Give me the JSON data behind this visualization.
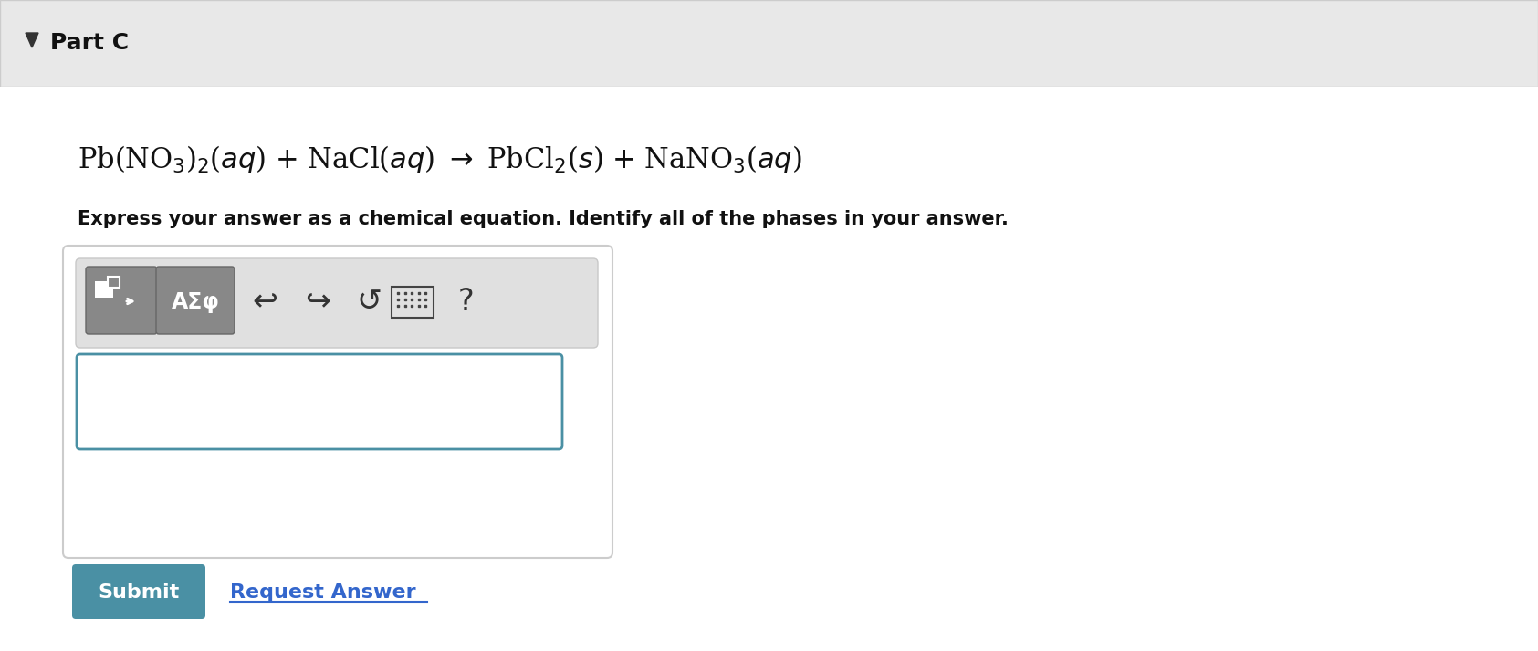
{
  "bg_color": "#f0f0f0",
  "white_bg": "#ffffff",
  "header_bg": "#e8e8e8",
  "part_label": "Part C",
  "instruction": "Express your answer as a chemical equation. Identify all of the phases in your answer.",
  "toolbar_btn2_text": "AΣφ",
  "submit_bg": "#4a90a4",
  "submit_text": "Submit",
  "request_text": "Request Answer",
  "request_color": "#3366cc",
  "input_border": "#4a90a4",
  "outer_box_border": "#cccccc",
  "triangle_color": "#333333"
}
